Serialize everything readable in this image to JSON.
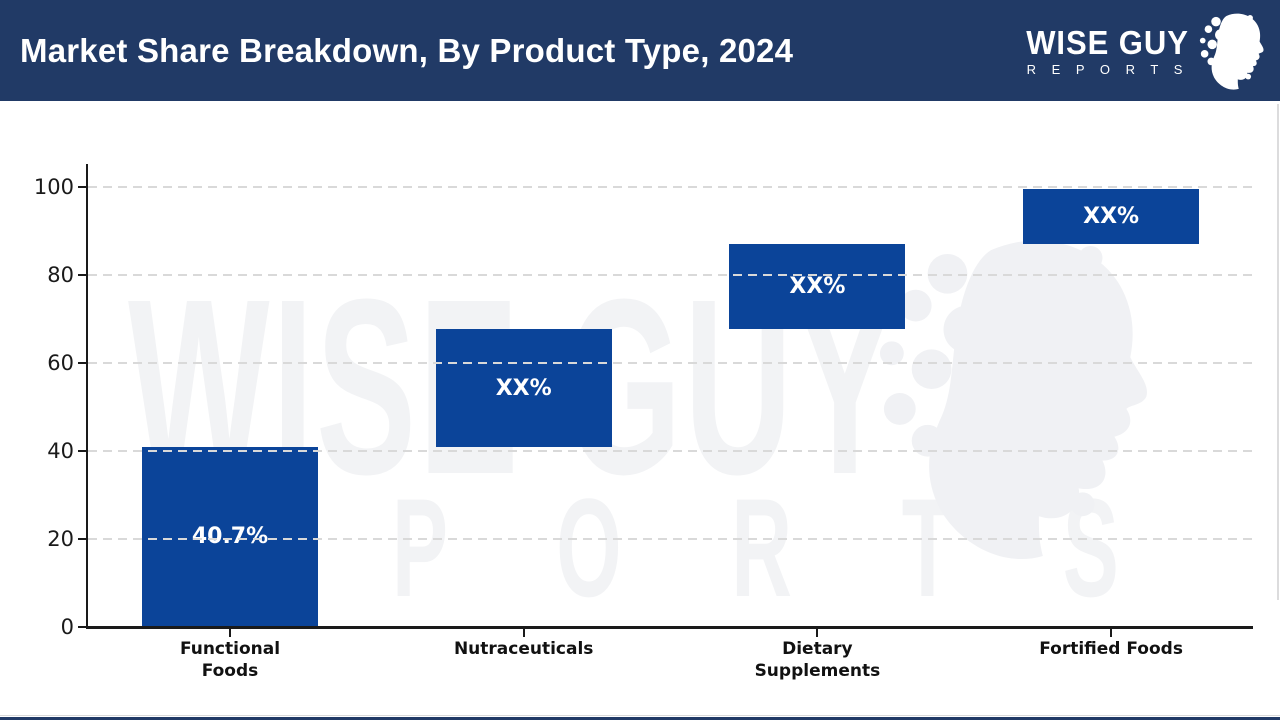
{
  "header": {
    "title": "Market Share Breakdown, By Product Type, 2024",
    "logo": {
      "line1": "WISE GUY",
      "line2": "R E P O R T S"
    }
  },
  "watermark": {
    "line1": "WISE GUY",
    "line2": "P O R T S"
  },
  "chart_data": {
    "type": "bar",
    "subtype": "waterfall",
    "title": "Market Share Breakdown, By Product Type, 2024",
    "categories": [
      "Functional Foods",
      "Nutraceuticals",
      "Dietary Supplements",
      "Fortified Foods"
    ],
    "segments": [
      {
        "category": "Functional Foods",
        "start": 0,
        "end": 40.7,
        "label": "40.7%"
      },
      {
        "category": "Nutraceuticals",
        "start": 40.7,
        "end": 67.7,
        "label": "XX%"
      },
      {
        "category": "Dietary Supplements",
        "start": 67.7,
        "end": 87.0,
        "label": "XX%"
      },
      {
        "category": "Fortified Foods",
        "start": 87.0,
        "end": 99.5,
        "label": "XX%"
      }
    ],
    "yticks": [
      0,
      20,
      40,
      60,
      80,
      100
    ],
    "ylim": [
      0,
      105
    ],
    "xlabel": "",
    "ylabel": "",
    "grid": "horizontal-dashed",
    "legend": "none"
  },
  "colors": {
    "header_bg": "#213a66",
    "bar": "#0b4499",
    "value_label": "#ffffff",
    "gridline": "#d9d9d9",
    "axis": "#1a1a1a",
    "watermark": "#f2f3f5",
    "footer_bg": "#213a66"
  }
}
